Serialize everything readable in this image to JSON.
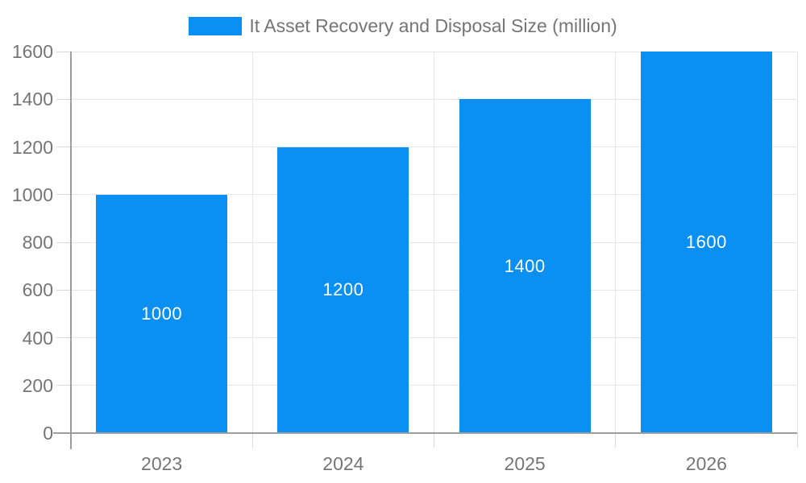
{
  "chart_data": {
    "type": "bar",
    "title": "It Asset Recovery and Disposal Size (million)",
    "categories": [
      "2023",
      "2024",
      "2025",
      "2026"
    ],
    "values": [
      1000,
      1200,
      1400,
      1600
    ],
    "data_labels": [
      "1000",
      "1200",
      "1400",
      "1600"
    ],
    "xlabel": "",
    "ylabel": "",
    "ylim": [
      0,
      1600
    ],
    "yticks": [
      0,
      200,
      400,
      600,
      800,
      1000,
      1200,
      1400,
      1600
    ],
    "grid": "on",
    "legend_position": "top",
    "colors": {
      "bar": "#0a8ff2",
      "bar_label_text": "#ffffff",
      "axis_text": "#757575",
      "axis_line": "#9e9e9e",
      "grid_line": "#e6e6e6",
      "tick_line": "#d9d9d9",
      "background": "#ffffff"
    }
  }
}
